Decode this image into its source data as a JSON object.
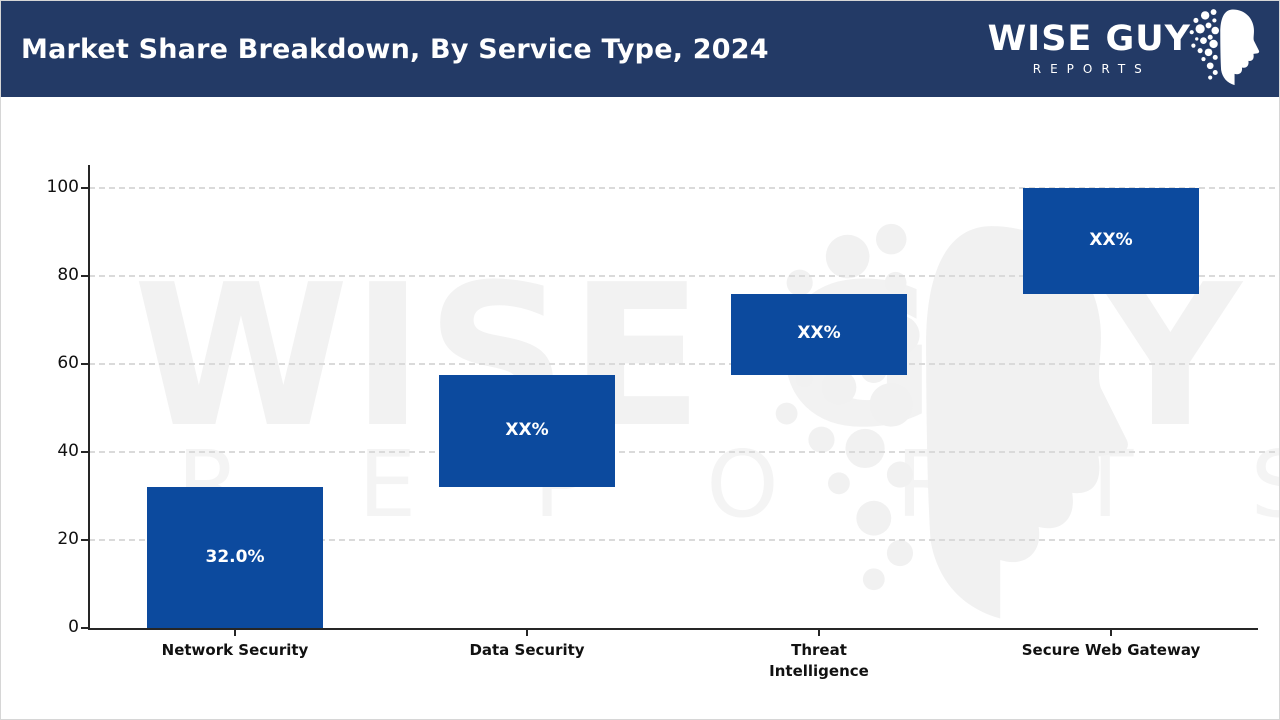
{
  "header": {
    "title": "Market Share Breakdown, By Service Type, 2024",
    "logo": {
      "name": "WISE GUY",
      "sub": "REPORTS"
    }
  },
  "watermark": {
    "big": "WISE GUY",
    "sub": "R E P O R T S"
  },
  "chart_data": {
    "type": "bar",
    "variant": "waterfall",
    "title": "Market Share Breakdown, By Service Type, 2024",
    "xlabel": "",
    "ylabel": "",
    "ylim": [
      0,
      100
    ],
    "yticks": [
      0,
      20,
      40,
      60,
      80,
      100
    ],
    "grid": {
      "axis": "y",
      "style": "dashed",
      "color": "#dadada"
    },
    "legend": "none",
    "bar_color": "#0c4a9e",
    "bar_label_color": "#ffffff",
    "categories": [
      "Network Security",
      "Data Security",
      "Threat\nIntelligence",
      "Secure Web Gateway"
    ],
    "segments": [
      {
        "category": "Network Security",
        "start": 0,
        "end": 32,
        "label": "32.0%"
      },
      {
        "category": "Data Security",
        "start": 32,
        "end": 57.5,
        "label": "XX%"
      },
      {
        "category": "Threat\nIntelligence",
        "start": 57.5,
        "end": 76,
        "label": "XX%"
      },
      {
        "category": "Secure Web Gateway",
        "start": 76,
        "end": 100,
        "label": "XX%"
      }
    ]
  },
  "colors": {
    "header_bg": "#233a66",
    "bar": "#0c4a9e",
    "axis": "#262626",
    "grid": "#dadada",
    "watermark": "#f1f1f1"
  }
}
